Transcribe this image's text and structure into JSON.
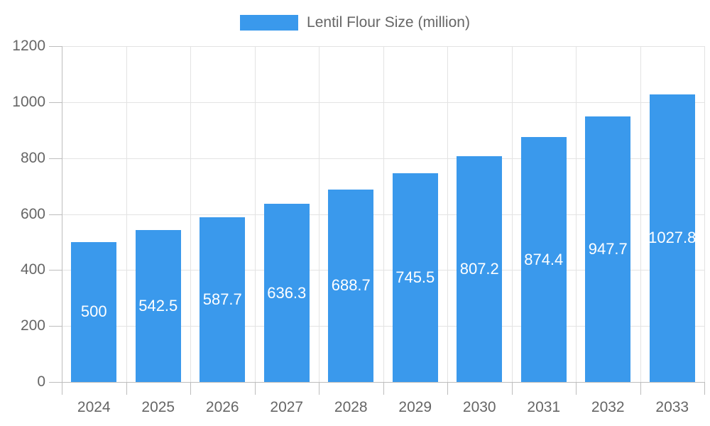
{
  "chart_data": {
    "type": "bar",
    "title": "Lentil Flour Size (million)",
    "categories": [
      "2024",
      "2025",
      "2026",
      "2027",
      "2028",
      "2029",
      "2030",
      "2031",
      "2032",
      "2033"
    ],
    "series": [
      {
        "name": "Lentil Flour Size (million)",
        "values": [
          500,
          542.5,
          587.7,
          636.3,
          688.7,
          745.5,
          807.2,
          874.4,
          947.7,
          1027.8
        ]
      }
    ],
    "data_labels": [
      "500",
      "542.5",
      "587.7",
      "636.3",
      "688.7",
      "745.5",
      "807.2",
      "874.4",
      "947.7",
      "1027.8"
    ],
    "xlabel": "",
    "ylabel": "",
    "ylim": [
      0,
      1200
    ],
    "ytick_step": 200,
    "ytick_labels": [
      "0",
      "200",
      "400",
      "600",
      "800",
      "1000",
      "1200"
    ],
    "grid": "on",
    "legend_position": "top-center",
    "colors": {
      "bar": "#3A99EC",
      "bar_value_label": "#FFFFFF",
      "axis_text": "#666666",
      "gridline": "#E3E3E3",
      "axis_line": "#BDBDBD",
      "background": "#FFFFFF"
    }
  }
}
